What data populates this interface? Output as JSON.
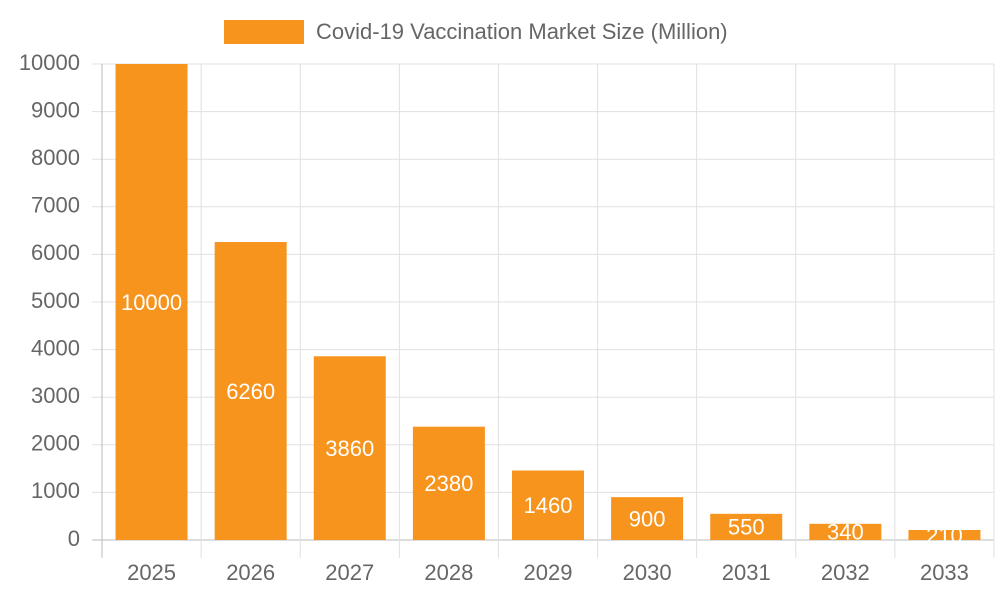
{
  "chart_data": {
    "type": "bar",
    "categories": [
      "2025",
      "2026",
      "2027",
      "2028",
      "2029",
      "2030",
      "2031",
      "2032",
      "2033"
    ],
    "series": [
      {
        "name": "Covid-19 Vaccination Market Size (Million)",
        "color": "#f7941d",
        "values": [
          10000,
          6260,
          3860,
          2380,
          1460,
          900,
          550,
          340,
          210
        ]
      }
    ],
    "ylim": [
      0,
      10000
    ],
    "yticks": [
      0,
      1000,
      2000,
      3000,
      4000,
      5000,
      6000,
      7000,
      8000,
      9000,
      10000
    ],
    "grid": true,
    "legend": "top",
    "data_labels": true
  }
}
